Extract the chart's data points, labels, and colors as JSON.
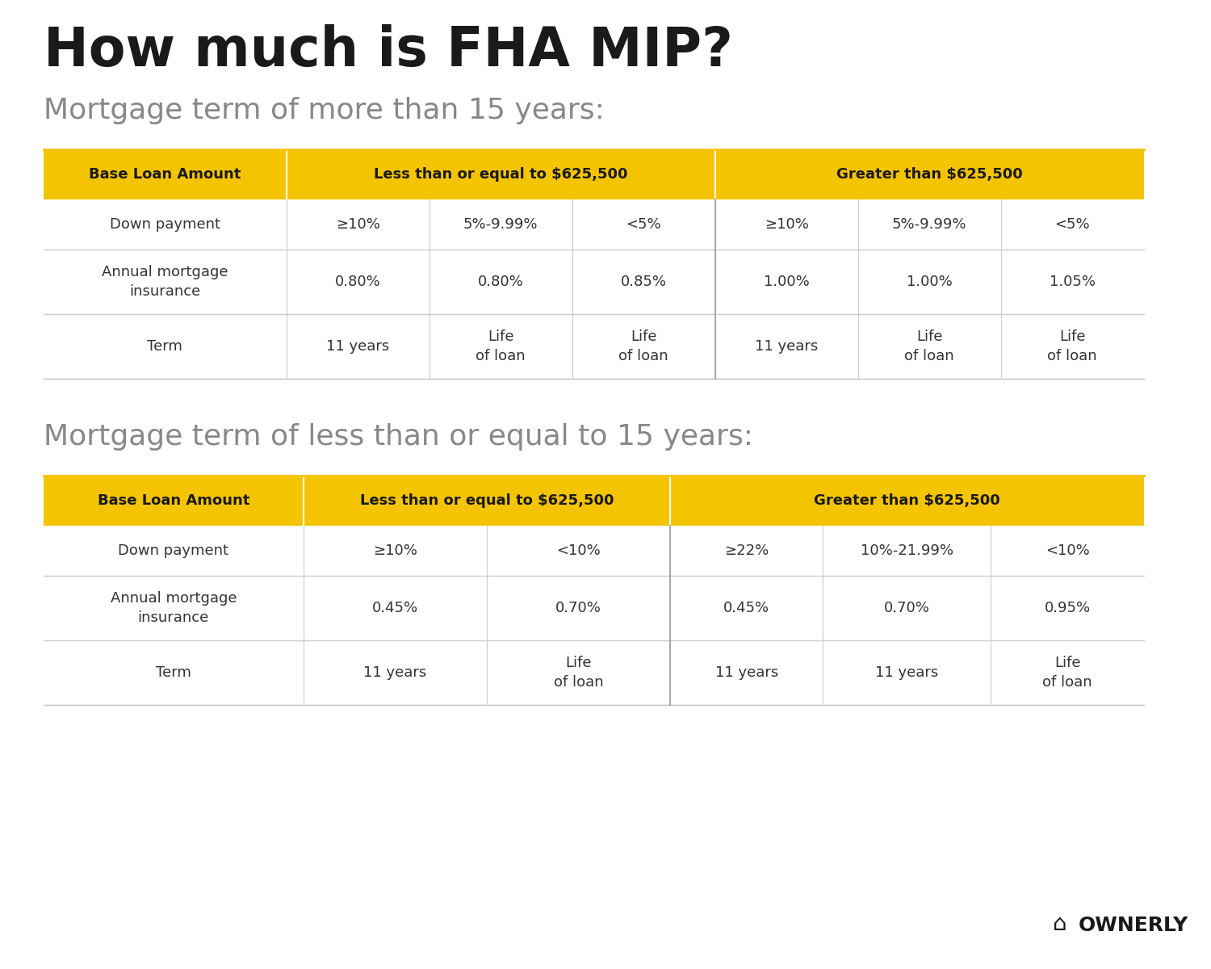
{
  "title": "How much is FHA MIP?",
  "title_color": "#1a1a1a",
  "bg_color": "#ffffff",
  "subtitle1": "Mortgage term of more than 15 years:",
  "subtitle2": "Mortgage term of less than or equal to 15 years:",
  "subtitle_color": "#888888",
  "header_bg": "#f5c400",
  "header_text_color": "#1a1a1a",
  "body_text_color": "#333333",
  "line_color": "#cccccc",
  "table1": {
    "headers": [
      "Base Loan Amount",
      "Less than or equal to $625,500",
      "Greater than $625,500"
    ],
    "header_spans": [
      1,
      3,
      3
    ],
    "rows": [
      [
        "Down payment",
        "≥10%",
        "5%-9.99%",
        "<5%",
        "≥10%",
        "5%-9.99%",
        "<5%"
      ],
      [
        "Annual mortgage\ninsurance",
        "0.80%",
        "0.80%",
        "0.85%",
        "1.00%",
        "1.00%",
        "1.05%"
      ],
      [
        "Term",
        "11 years",
        "Life\nof loan",
        "Life\nof loan",
        "11 years",
        "Life\nof loan",
        "Life\nof loan"
      ]
    ]
  },
  "table2": {
    "headers": [
      "Base Loan Amount",
      "Less than or equal to $625,500",
      "Greater than $625,500"
    ],
    "header_spans": [
      1,
      2,
      3
    ],
    "rows": [
      [
        "Down payment",
        "≥10%",
        "<10%",
        "≥22%",
        "10%-21.99%",
        "<10%"
      ],
      [
        "Annual mortgage\ninsurance",
        "0.45%",
        "0.70%",
        "0.45%",
        "0.70%",
        "0.95%"
      ],
      [
        "Term",
        "11 years",
        "Life\nof loan",
        "11 years",
        "11 years",
        "Life\nof loan"
      ]
    ]
  },
  "ownerly_text": "OWNERLY"
}
